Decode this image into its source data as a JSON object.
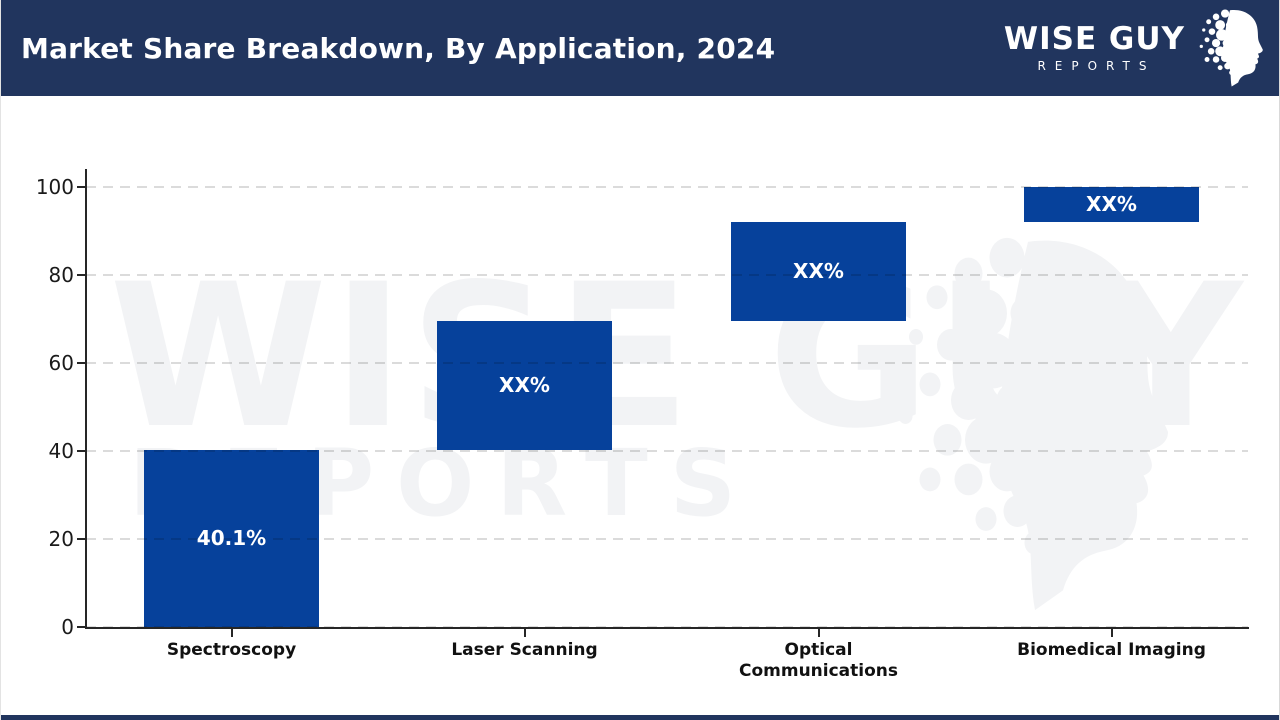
{
  "header": {
    "title": "Market Share Breakdown, By Application, 2024",
    "bg_color": "#21355E",
    "logo": {
      "line1": "WISE GUY",
      "line2": "REPORTS",
      "face_icon": "head-profile-dots"
    }
  },
  "watermark": {
    "line1": "WISE GUY",
    "line2": "REPORTS",
    "face_icon": "head-profile-dots"
  },
  "chart_data": {
    "type": "bar",
    "subtype": "waterfall",
    "title": "Market Share Breakdown, By Application, 2024",
    "categories": [
      "Spectroscopy",
      "Laser Scanning",
      "Optical Communications",
      "Biomedical Imaging"
    ],
    "segments": [
      {
        "label": "Spectroscopy",
        "label_lines": [
          "Spectroscopy"
        ],
        "start": 0,
        "end": 40.1,
        "value": 40.1,
        "value_label": "40.1%"
      },
      {
        "label": "Laser Scanning",
        "label_lines": [
          "Laser Scanning"
        ],
        "start": 40.1,
        "end": 69.6,
        "value": 29.5,
        "value_label": "XX%"
      },
      {
        "label": "Optical Communications",
        "label_lines": [
          "Optical",
          "Communications"
        ],
        "start": 69.6,
        "end": 92.0,
        "value": 22.4,
        "value_label": "XX%"
      },
      {
        "label": "Biomedical Imaging",
        "label_lines": [
          "Biomedical Imaging"
        ],
        "start": 92.0,
        "end": 100.0,
        "value": 8.0,
        "value_label": "XX%"
      }
    ],
    "yticks": [
      0,
      20,
      40,
      60,
      80,
      100
    ],
    "ylim": [
      0,
      105
    ],
    "xlabel": "",
    "ylabel": "",
    "bar_color": "#06419B",
    "grid": true,
    "grid_style": "dashed",
    "legend": false
  }
}
